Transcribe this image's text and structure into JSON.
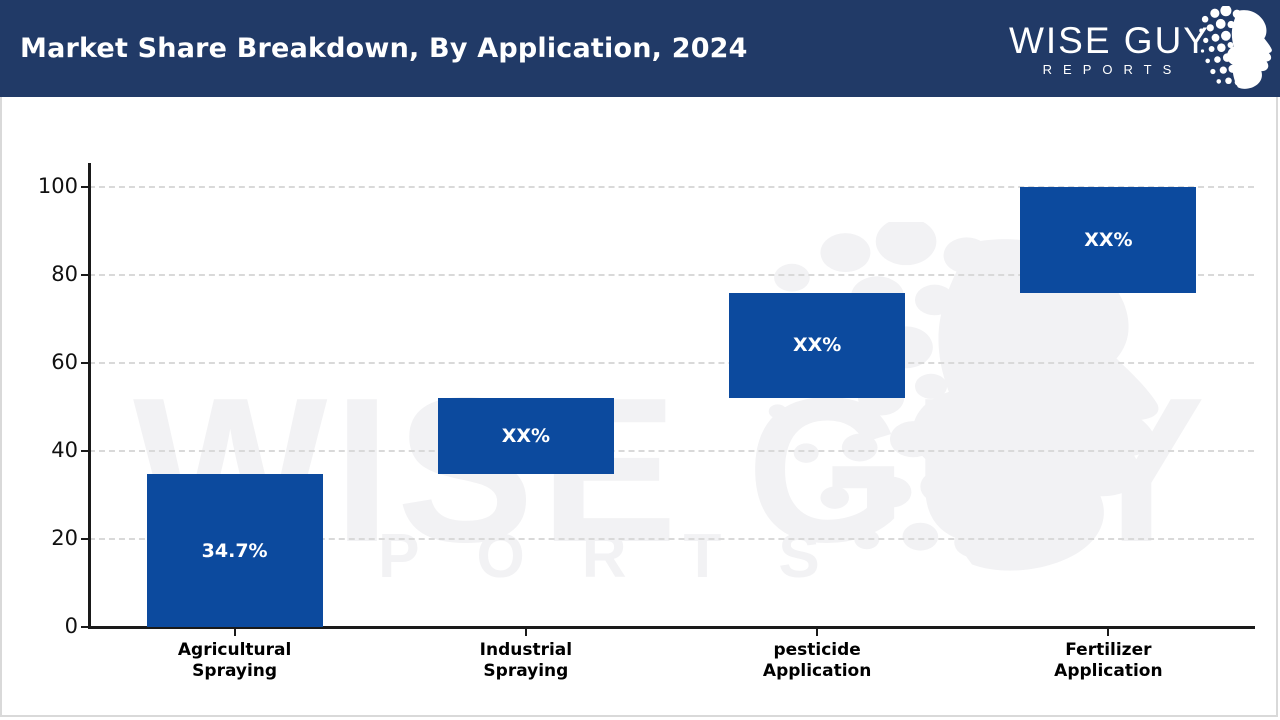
{
  "header": {
    "title": "Market Share Breakdown, By Application, 2024",
    "logo": {
      "wordmark": "WISE GUY",
      "subtext": "REPORTS"
    }
  },
  "watermark": {
    "wordmark": "WISE GUY",
    "subtext": "REPORTS"
  },
  "colors": {
    "header_bg": "#213a67",
    "bar": "#0c4a9e",
    "gridline": "#d9d9d9",
    "axis": "#1a1a1a",
    "watermark": "#f2f2f4",
    "value_label": "#ffffff",
    "frame_border": "#d9d9d9"
  },
  "chart_data": {
    "type": "bar",
    "subtype": "waterfall-floating-bars",
    "title": "Market Share Breakdown, By Application, 2024",
    "categories": [
      "Agricultural Spraying",
      "Industrial Spraying",
      "pesticide Application",
      "Fertilizer Application"
    ],
    "segments": [
      {
        "category": "Agricultural Spraying",
        "start": 0,
        "end": 34.7,
        "label": "34.7%"
      },
      {
        "category": "Industrial Spraying",
        "start": 34.7,
        "end": 52,
        "label": "XX%"
      },
      {
        "category": "pesticide Application",
        "start": 52,
        "end": 76,
        "label": "XX%"
      },
      {
        "category": "Fertilizer Application",
        "start": 76,
        "end": 100,
        "label": "XX%"
      }
    ],
    "xlabel": "",
    "ylabel": "",
    "yticks": [
      0,
      20,
      40,
      60,
      80,
      100
    ],
    "ylim": [
      0,
      105.5
    ],
    "grid": "dashed horizontal",
    "legend": "none",
    "bar_value_labels": [
      "34.7%",
      "XX%",
      "XX%",
      "XX%"
    ]
  }
}
